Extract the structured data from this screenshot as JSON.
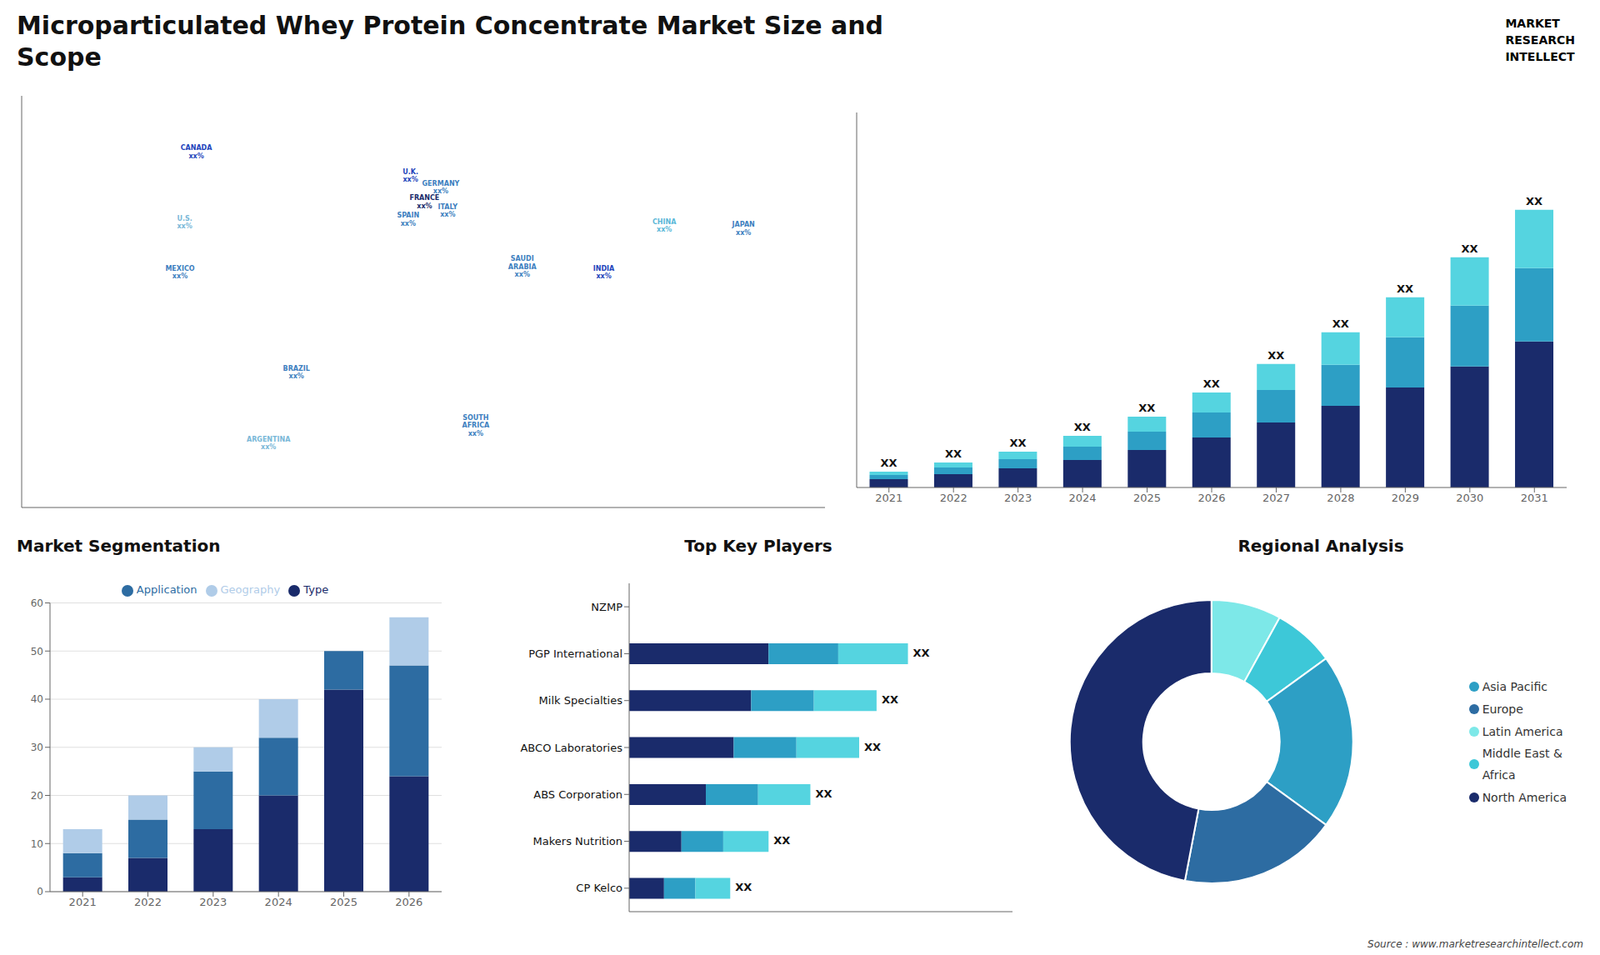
{
  "title": "Microparticulated Whey Protein Concentrate Market Size and\nScope",
  "annotations": [
    "MARKET",
    "RESEARCH",
    "INTELLECT",
    "Source : www.marketresearchintellect.com"
  ],
  "chart_data": [
    {
      "type": "map",
      "categories": [
        "CANADA\nxx%",
        "U.S.\nxx%",
        "MEXICO\nxx%",
        "BRAZIL\nxx%",
        "ARGENTINA\nxx%",
        "U.K.\nxx%",
        "FRANCE\nxx%",
        "SPAIN\nxx%",
        "GERMANY\nxx%",
        "ITALY\nxx%",
        "SAUDI\nARABIA\nxx%",
        "SOUTH\nAFRICA\nxx%",
        "INDIA\nxx%",
        "CHINA\nxx%",
        "JAPAN\nxx%"
      ],
      "x": [
        -95,
        -100,
        -102,
        -52,
        -64,
        -3,
        3,
        -4,
        10,
        13,
        45,
        25,
        80,
        106,
        140
      ],
      "y": [
        63,
        39,
        22,
        -12,
        -36,
        55,
        46,
        40,
        51,
        43,
        24,
        -30,
        22,
        38,
        37
      ],
      "colors": [
        "#2244bb",
        "#7ab8d8",
        "#3d7fc0",
        "#3d7fc0",
        "#7ab8d8",
        "#2244bb",
        "#1a2b6b",
        "#3d7fc0",
        "#3d7fc0",
        "#3d7fc0",
        "#3d7fc0",
        "#3d7fc0",
        "#2244bb",
        "#5ab8d8",
        "#3d7fc0"
      ],
      "xlim": [
        -170,
        175
      ],
      "ylim": [
        -58,
        82
      ],
      "tick_labels": false
    },
    {
      "type": "bar",
      "stacked": true,
      "categories": [
        "2021",
        "2022",
        "2023",
        "2024",
        "2025",
        "2026",
        "2027",
        "2028",
        "2029",
        "2030",
        "2031"
      ],
      "series": [
        {
          "color": "#1a2b6b",
          "values": [
            1.0,
            1.6,
            2.3,
            3.3,
            4.5,
            6.0,
            7.8,
            9.8,
            12.0,
            14.5,
            17.5
          ]
        },
        {
          "color": "#2d9fc5",
          "values": [
            0.5,
            0.8,
            1.1,
            1.6,
            2.2,
            3.0,
            3.9,
            4.9,
            6.0,
            7.3,
            8.8
          ]
        },
        {
          "color": "#55d4e0",
          "values": [
            0.4,
            0.6,
            0.9,
            1.3,
            1.8,
            2.4,
            3.1,
            3.9,
            4.8,
            5.8,
            7.0
          ],
          "value_labels": [
            "XX",
            "XX",
            "XX",
            "XX",
            "XX",
            "XX",
            "XX",
            "XX",
            "XX",
            "XX",
            "XX"
          ]
        }
      ],
      "ylim": [
        0,
        44.955
      ],
      "tick_labels": "x"
    },
    {
      "type": "bar",
      "title": "Market Segmentation",
      "stacked": true,
      "categories": [
        "2021",
        "2022",
        "2023",
        "2024",
        "2025",
        "2026"
      ],
      "series": [
        {
          "name": "Type",
          "color": "#1a2b6b",
          "values": [
            3,
            7,
            13,
            20,
            42,
            24
          ]
        },
        {
          "name": "Application",
          "color": "#2d6ca2",
          "values": [
            5,
            8,
            12,
            12,
            8,
            23
          ]
        },
        {
          "name": "Geography",
          "color": "#b0cce8",
          "values": [
            5,
            5,
            5,
            8,
            0,
            10
          ]
        }
      ],
      "ylim": [
        0,
        60
      ],
      "yticks": [
        0,
        10,
        20,
        30,
        40,
        50,
        60
      ],
      "grid": true,
      "legend": "top"
    },
    {
      "type": "bar",
      "title": "Top Key Players",
      "orientation": "horizontal",
      "stacked": true,
      "categories": [
        "NZMP",
        "PGP International",
        "Milk Specialties",
        "ABCO Laboratories",
        "ABS Corporation",
        "Makers Nutrition",
        "CP Kelco"
      ],
      "series": [
        {
          "color": "#1a2b6b",
          "values": [
            0,
            4.0,
            3.5,
            3.0,
            2.2,
            1.5,
            1.0
          ]
        },
        {
          "color": "#2d9fc5",
          "values": [
            0,
            2.0,
            1.8,
            1.8,
            1.5,
            1.2,
            0.9
          ]
        },
        {
          "color": "#55d4e0",
          "values": [
            0,
            2.0,
            1.8,
            1.8,
            1.5,
            1.3,
            1.0
          ],
          "value_labels": [
            null,
            "XX",
            "XX",
            "XX",
            "XX",
            "XX",
            "XX"
          ]
        }
      ],
      "xlim": [
        0,
        11
      ],
      "tick_labels": "y"
    },
    {
      "type": "pie",
      "title": "Regional Analysis",
      "categories": [
        "Latin America",
        "Middle East &\nAfrica",
        "Asia Pacific",
        "Europe",
        "North America"
      ],
      "values": [
        8,
        7,
        20,
        18,
        47
      ],
      "colors": [
        "#7de8e8",
        "#3dc8d8",
        "#2d9fc5",
        "#2d6ca2",
        "#1a2b6b"
      ],
      "legend": "right"
    }
  ]
}
